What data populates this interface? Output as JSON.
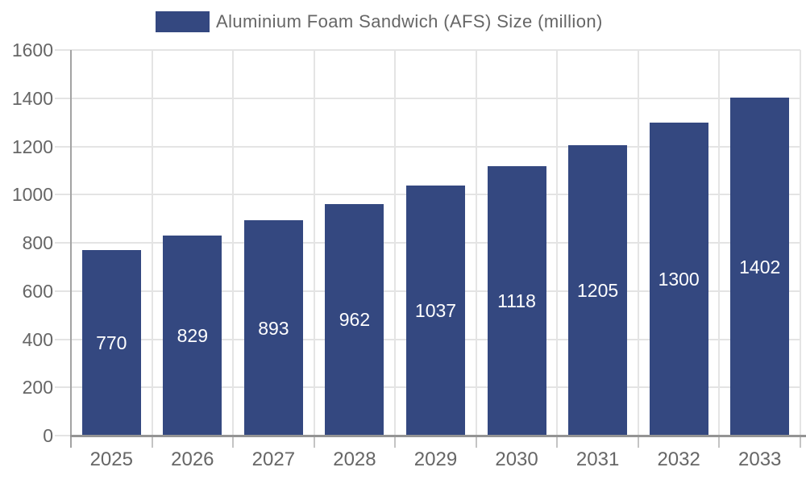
{
  "legend": {
    "label": "Aluminium Foam Sandwich (AFS) Size (million)"
  },
  "chart_data": {
    "type": "bar",
    "title": "",
    "legend": "Aluminium Foam Sandwich (AFS) Size (million)",
    "legend_position": "top",
    "categories": [
      "2025",
      "2026",
      "2027",
      "2028",
      "2029",
      "2030",
      "2031",
      "2032",
      "2033"
    ],
    "values": [
      770,
      829,
      893,
      962,
      1037,
      1118,
      1205,
      1300,
      1402
    ],
    "xlabel": "",
    "ylabel": "",
    "ylim": [
      0,
      1600
    ],
    "ytick_step": 200,
    "yticks": [
      0,
      200,
      400,
      600,
      800,
      1000,
      1200,
      1400,
      1600
    ],
    "grid": true,
    "colors": {
      "bar": "#344880",
      "value_label": "#ffffff",
      "axis_text": "#666666",
      "grid": "#e4e4e4",
      "axis_line": "#949494",
      "y_axis_line": "#a3a3a3",
      "tick": "#c4c4c4",
      "background": "#ffffff"
    }
  }
}
